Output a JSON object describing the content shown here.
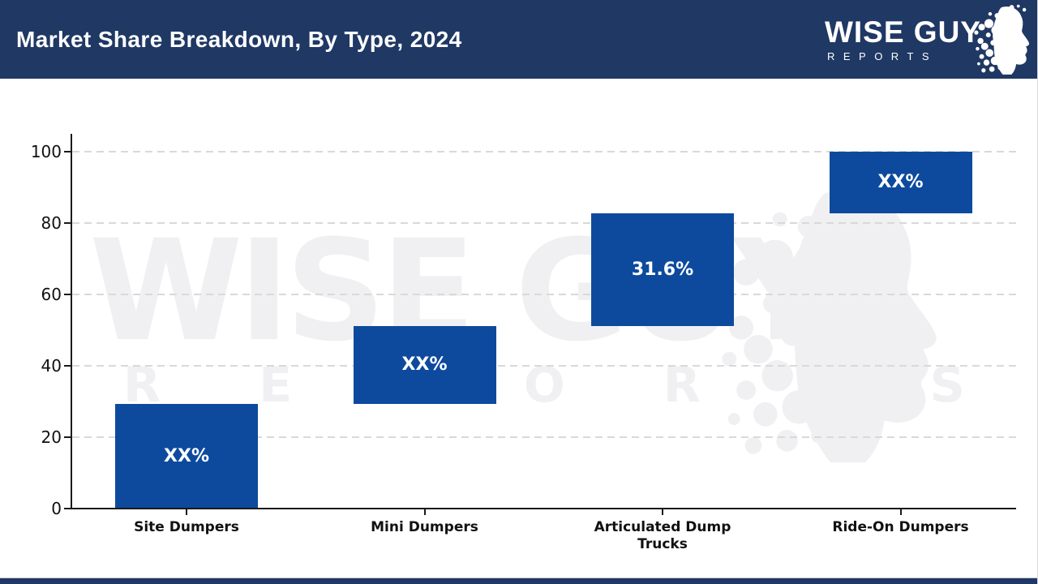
{
  "header": {
    "title": "Market Share Breakdown, By Type, 2024",
    "logo": {
      "wordmark": "WISE GUY",
      "subtitle": "REPORTS"
    }
  },
  "watermark": {
    "wordmark": "WISE GUY",
    "subtitle": "R E P O R T S"
  },
  "colors": {
    "header_bg": "#1f3864",
    "bar": "#0d4a9e",
    "bar_label": "#ffffff",
    "grid": "#d9d9d9",
    "axis": "#1a1a1a",
    "watermark": "#f0f0f2"
  },
  "chart_data": {
    "type": "bar",
    "variant": "waterfall",
    "title": "Market Share Breakdown, By Type, 2024",
    "unit": "%",
    "categories": [
      "Site Dumpers",
      "Mini Dumpers",
      "Articulated Dump Trucks",
      "Ride-On Dumpers"
    ],
    "ylim": [
      0,
      100
    ],
    "yticks": [
      0,
      20,
      40,
      60,
      80,
      100
    ],
    "grid": "horizontal-dashed",
    "legend": "none",
    "series": [
      {
        "name": "Market Share",
        "segments": [
          {
            "category": "Site Dumpers",
            "start": 0,
            "end": 29.3,
            "value": 29.3,
            "label": "XX%"
          },
          {
            "category": "Mini Dumpers",
            "start": 29.3,
            "end": 51.2,
            "value": 21.9,
            "label": "XX%"
          },
          {
            "category": "Articulated Dump Trucks",
            "start": 51.2,
            "end": 82.8,
            "value": 31.6,
            "label": "31.6%"
          },
          {
            "category": "Ride-On Dumpers",
            "start": 82.8,
            "end": 100,
            "value": 17.2,
            "label": "XX%"
          }
        ]
      }
    ]
  }
}
